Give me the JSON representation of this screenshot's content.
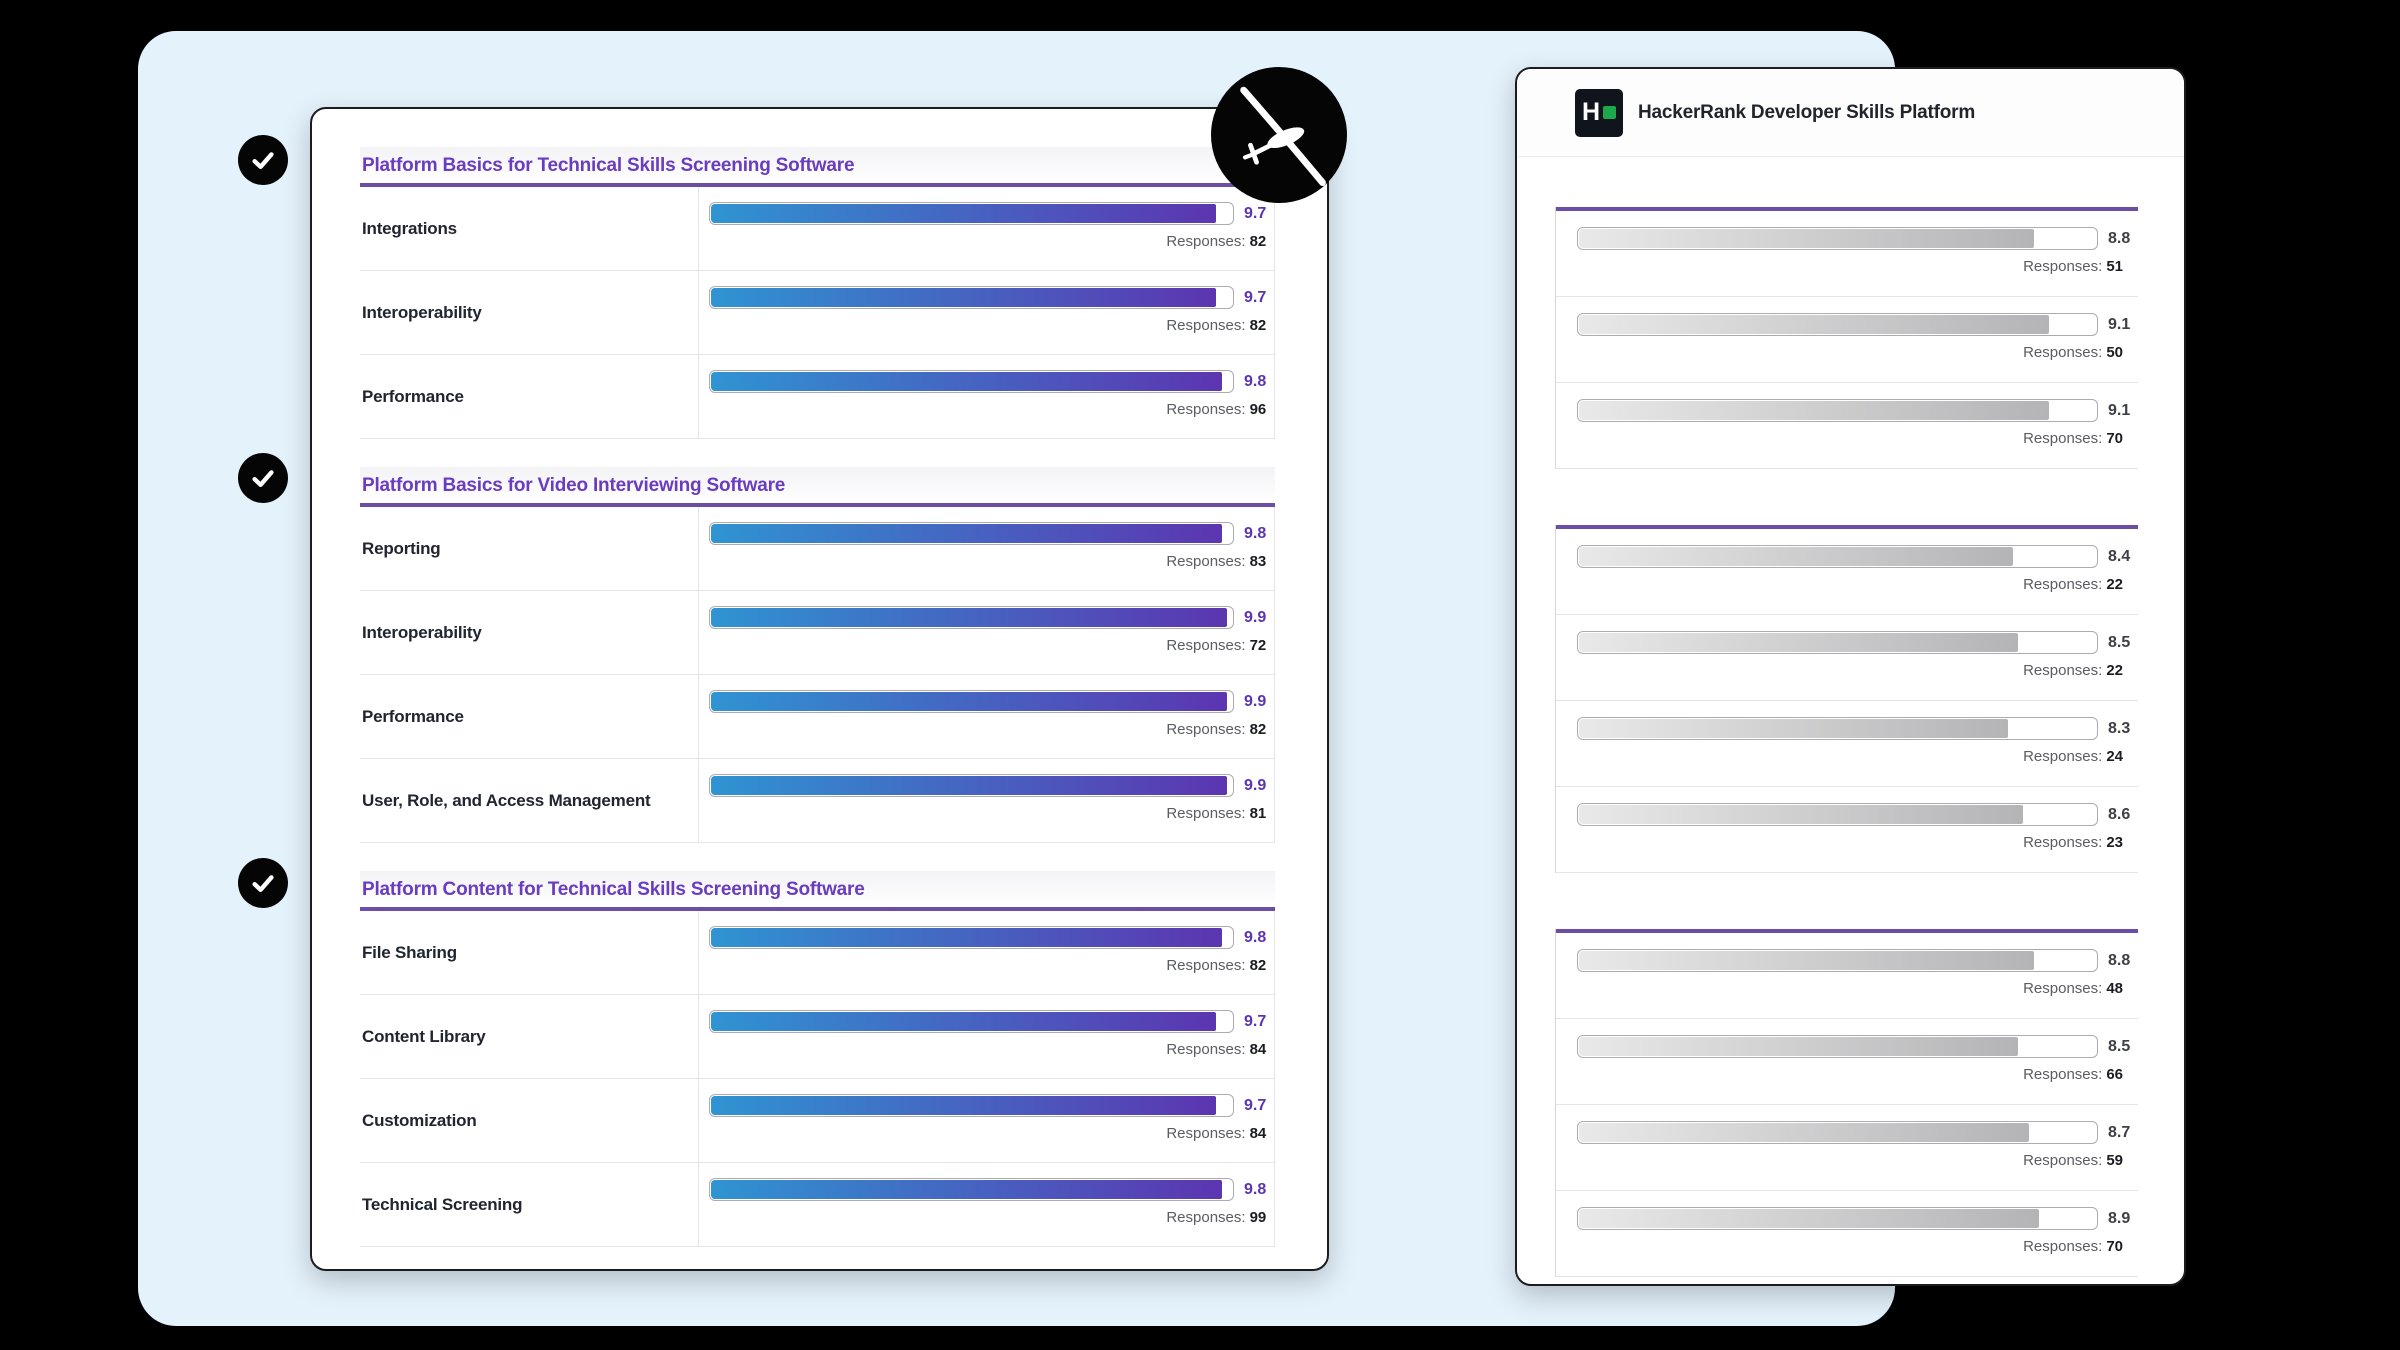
{
  "labels": {
    "responses": "Responses:"
  },
  "colors": {
    "background": "#000000",
    "panel_blue": "#E4F2FC",
    "accent_purple_text": "#6A3CC0",
    "section_rule_purple": "#6C4EA6",
    "bar_gradient_start_blue": "#2F94D2",
    "bar_gradient_end_purple": "#5C35B0",
    "gray_bar_start": "#E9E9E9",
    "gray_bar_end": "#B4B4B6",
    "hackerrank_green": "#1BA94C",
    "logo_background": "#10151D"
  },
  "icons": {
    "check_badge": "check-icon",
    "glider_badge": "glider-icon"
  },
  "left_card": {
    "sections": [
      {
        "title": "Platform Basics for Technical Skills Screening Software",
        "rows": [
          {
            "label": "Integrations",
            "score": "9.7",
            "responses": "82"
          },
          {
            "label": "Interoperability",
            "score": "9.7",
            "responses": "82"
          },
          {
            "label": "Performance",
            "score": "9.8",
            "responses": "96"
          }
        ]
      },
      {
        "title": "Platform Basics for Video Interviewing Software",
        "rows": [
          {
            "label": "Reporting",
            "score": "9.8",
            "responses": "83"
          },
          {
            "label": "Interoperability",
            "score": "9.9",
            "responses": "72"
          },
          {
            "label": "Performance",
            "score": "9.9",
            "responses": "82"
          },
          {
            "label": "User, Role, and Access Management",
            "score": "9.9",
            "responses": "81"
          }
        ]
      },
      {
        "title": "Platform Content for Technical Skills Screening Software",
        "rows": [
          {
            "label": "File Sharing",
            "score": "9.8",
            "responses": "82"
          },
          {
            "label": "Content Library",
            "score": "9.7",
            "responses": "84"
          },
          {
            "label": "Customization",
            "score": "9.7",
            "responses": "84"
          },
          {
            "label": "Technical Screening",
            "score": "9.8",
            "responses": "99"
          }
        ]
      }
    ]
  },
  "right_card": {
    "title": "HackerRank Developer Skills Platform",
    "logo_letter": "H",
    "sections": [
      {
        "rows": [
          {
            "score": "8.8",
            "responses": "51"
          },
          {
            "score": "9.1",
            "responses": "50"
          },
          {
            "score": "9.1",
            "responses": "70"
          }
        ]
      },
      {
        "rows": [
          {
            "score": "8.4",
            "responses": "22"
          },
          {
            "score": "8.5",
            "responses": "22"
          },
          {
            "score": "8.3",
            "responses": "24"
          },
          {
            "score": "8.6",
            "responses": "23"
          }
        ]
      },
      {
        "rows": [
          {
            "score": "8.8",
            "responses": "48"
          },
          {
            "score": "8.5",
            "responses": "66"
          },
          {
            "score": "8.7",
            "responses": "59"
          },
          {
            "score": "8.9",
            "responses": "70"
          }
        ]
      }
    ]
  }
}
